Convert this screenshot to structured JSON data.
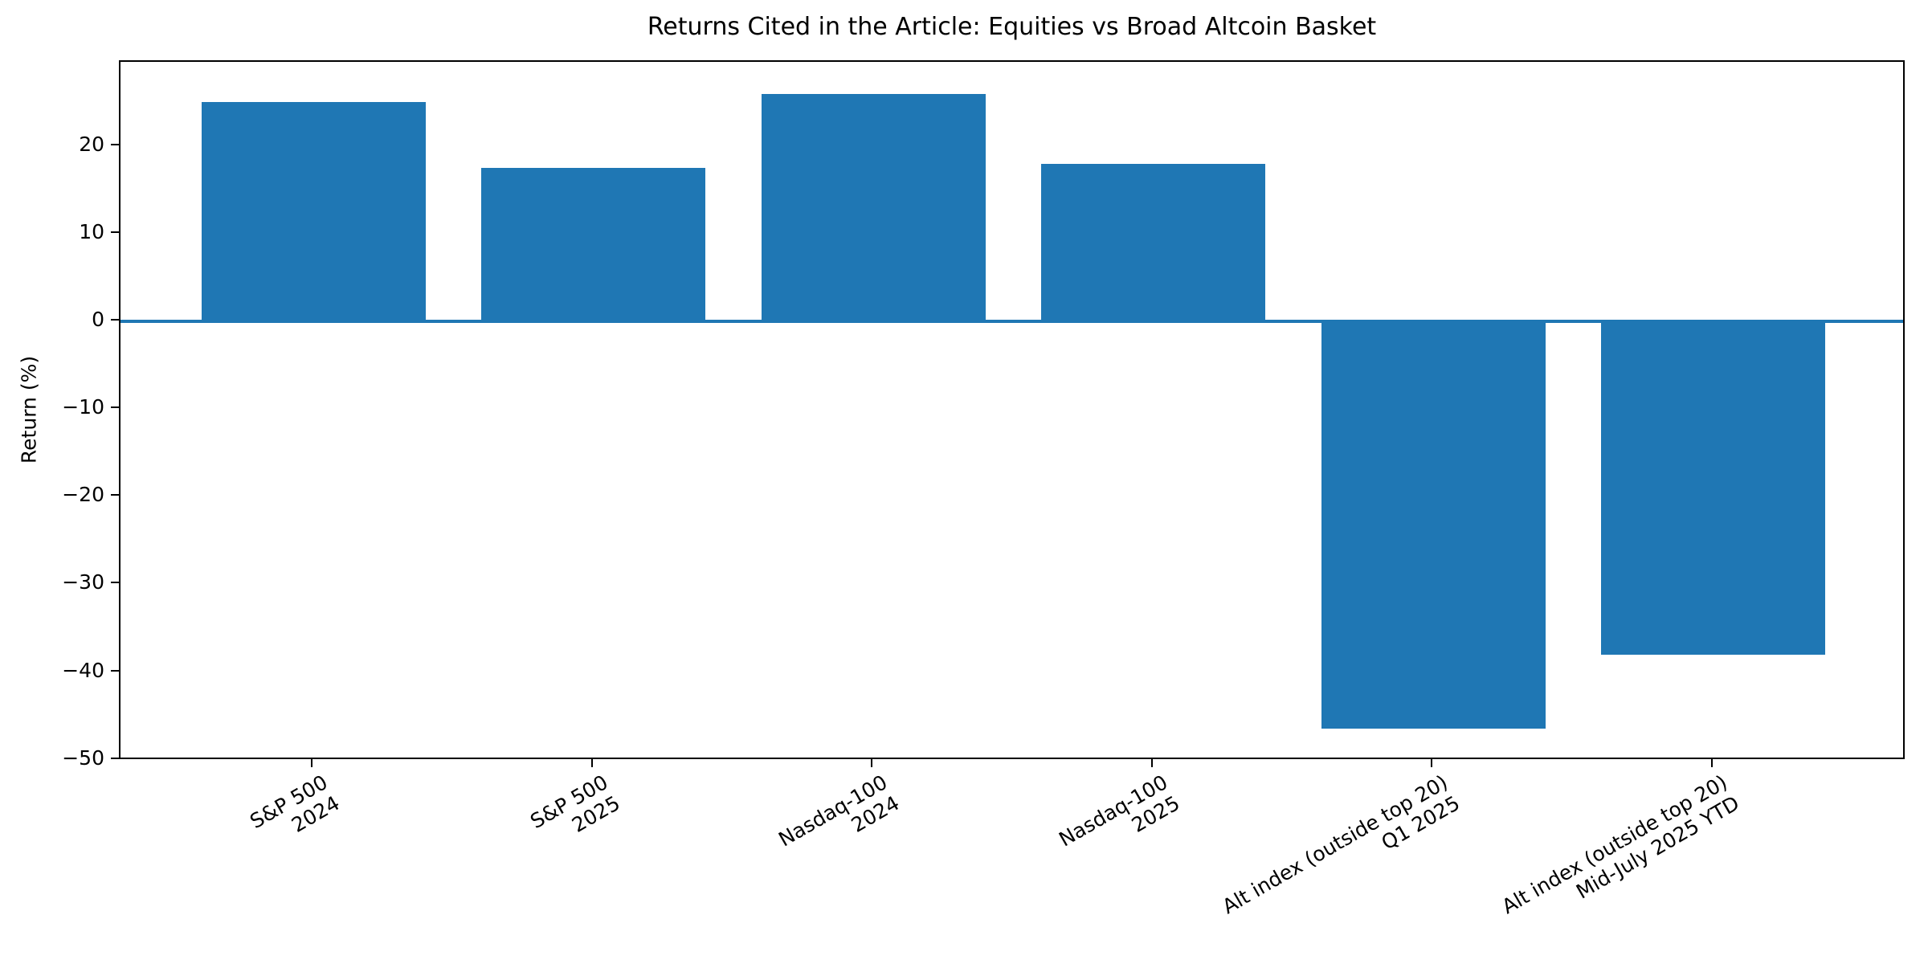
{
  "chart_data": {
    "type": "bar",
    "title": "Returns Cited in the Article: Equities vs Broad Altcoin Basket",
    "xlabel": "",
    "ylabel": "Return (%)",
    "categories": [
      "S&P 500\n2024",
      "S&P 500\n2025",
      "Nasdaq-100\n2024",
      "Nasdaq-100\n2025",
      "Alt index (outside top 20)\nQ1 2025",
      "Alt index (outside top 20)\nMid-July 2025 YTD"
    ],
    "values": [
      25,
      17.5,
      26,
      18,
      -46.5,
      -38
    ],
    "unit": "%",
    "y_ticks": [
      20,
      10,
      0,
      -10,
      -20,
      -30,
      -40,
      -50
    ],
    "ylim": [
      -50.125,
      29.625
    ],
    "bar_color": "#1f77b4",
    "zero_line_color": "#1f77b4",
    "x_tick_rotation_deg": 30,
    "grid": false,
    "legend": "none"
  }
}
